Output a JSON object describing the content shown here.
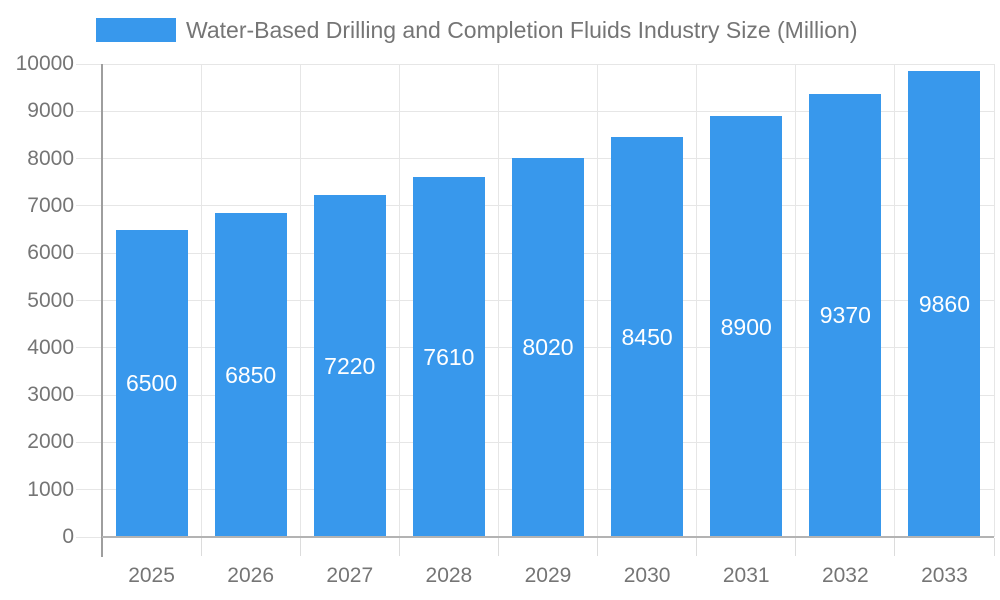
{
  "chart_data": {
    "type": "bar",
    "title": "Water-Based Drilling and Completion Fluids Industry Size (Million)",
    "categories": [
      "2025",
      "2026",
      "2027",
      "2028",
      "2029",
      "2030",
      "2031",
      "2032",
      "2033"
    ],
    "series": [
      {
        "name": "Water-Based Drilling and Completion Fluids Industry Size (Million)",
        "values": [
          6500,
          6850,
          7220,
          7610,
          8020,
          8450,
          8900,
          9370,
          9860
        ]
      }
    ],
    "xlabel": "",
    "ylabel": "",
    "ylim": [
      0,
      10000
    ],
    "ytick_step": 1000,
    "yticks": [
      0,
      1000,
      2000,
      3000,
      4000,
      5000,
      6000,
      7000,
      8000,
      9000,
      10000
    ],
    "grid": true,
    "legend_position": "top-left",
    "bar_label_position": "inside-center",
    "colors": {
      "bar": "#3898ec",
      "bar_label": "#ffffff",
      "axis_text": "#757575",
      "grid_line": "#e6e6e6",
      "tick_line": "#dcdcdc",
      "y_axis_line": "#9e9e9e",
      "x_baseline": "#b3b3b3",
      "background": "#ffffff"
    }
  }
}
